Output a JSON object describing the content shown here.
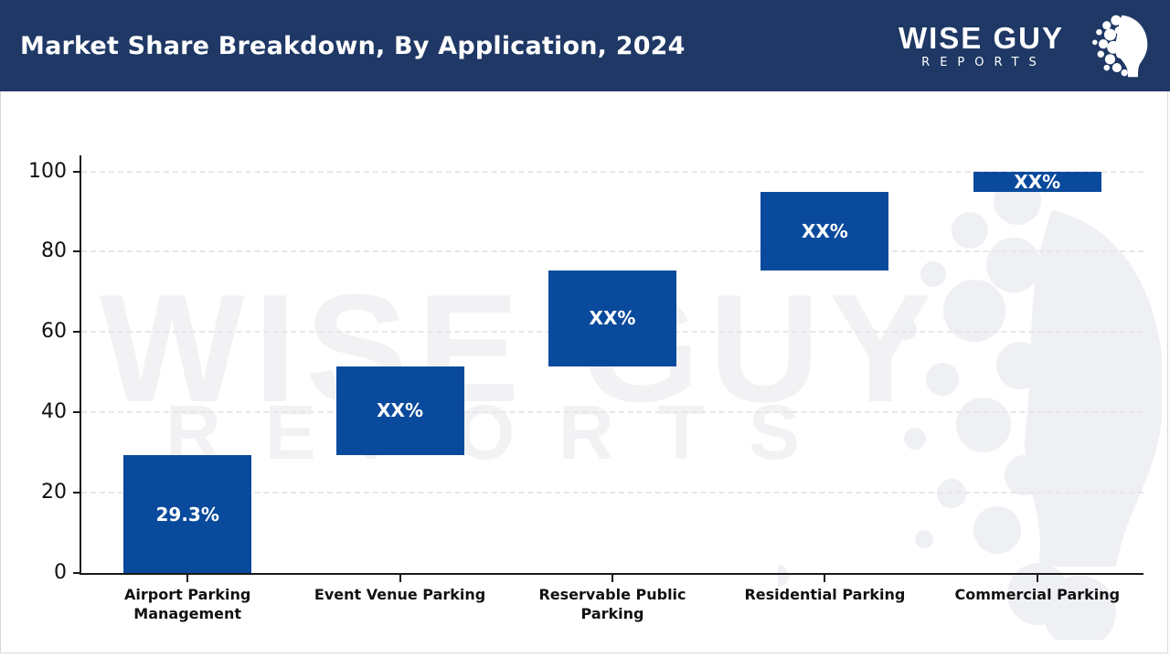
{
  "header": {
    "title": "Market Share Breakdown, By Application, 2024",
    "logo": {
      "line1": "WISE GUY",
      "line2": "REPORTS"
    }
  },
  "watermark": {
    "line1": "WISE GUY",
    "line2": "REPORTS"
  },
  "colors": {
    "header_bg": "#1f3865",
    "bar": "#0a4a9c",
    "bar_label": "#ffffff",
    "gridline": "#e7e7ea",
    "axis": "#1a1a1a",
    "watermark": "#f0f1f4"
  },
  "chart_data": {
    "type": "bar",
    "variant": "waterfall",
    "title": "Market Share Breakdown, By Application, 2024",
    "categories": [
      "Airport Parking Management",
      "Event Venue Parking",
      "Reservable Public Parking",
      "Residential Parking",
      "Commercial Parking"
    ],
    "segments": [
      {
        "category": "Airport Parking Management",
        "start": 0,
        "end": 29.3,
        "label": "29.3%"
      },
      {
        "category": "Event Venue Parking",
        "start": 29.3,
        "end": 51.5,
        "label": "XX%"
      },
      {
        "category": "Reservable Public Parking",
        "start": 51.5,
        "end": 75.3,
        "label": "XX%"
      },
      {
        "category": "Residential Parking",
        "start": 75.3,
        "end": 95.0,
        "label": "XX%"
      },
      {
        "category": "Commercial Parking",
        "start": 95.0,
        "end": 99.8,
        "label": "XX%"
      }
    ],
    "y_ticks": [
      0,
      20,
      40,
      60,
      80,
      100
    ],
    "ylim": [
      0,
      104
    ],
    "xlabel": "",
    "ylabel": "",
    "grid": "horizontal-dashed",
    "legend": "none"
  }
}
